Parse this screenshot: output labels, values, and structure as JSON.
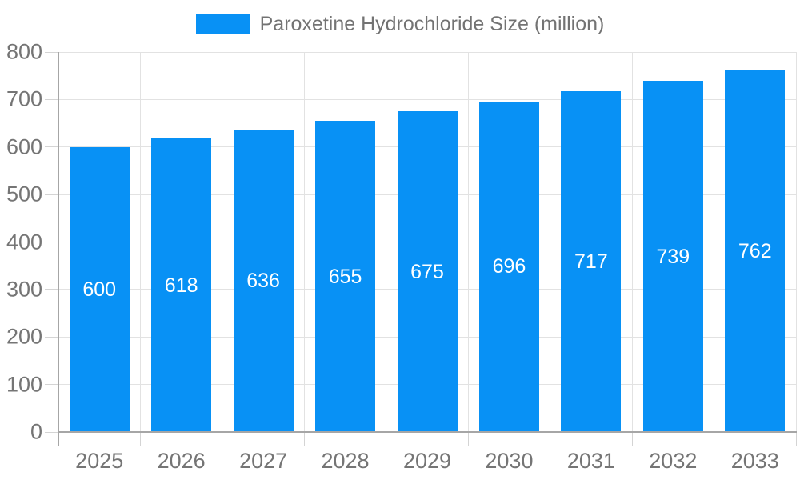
{
  "legend": {
    "label": "Paroxetine Hydrochloride Size (million)"
  },
  "chart_data": {
    "type": "bar",
    "title": "Paroxetine Hydrochloride Size (million)",
    "categories": [
      "2025",
      "2026",
      "2027",
      "2028",
      "2029",
      "2030",
      "2031",
      "2032",
      "2033"
    ],
    "values": [
      600,
      618,
      636,
      655,
      675,
      696,
      717,
      739,
      762
    ],
    "series_name": "Paroxetine Hydrochloride Size (million)",
    "xlabel": "",
    "ylabel": "",
    "ylim": [
      0,
      800
    ],
    "yticks": [
      0,
      100,
      200,
      300,
      400,
      500,
      600,
      700,
      800
    ],
    "grid": true,
    "legend_position": "top",
    "colors": {
      "bar": "#0891F5",
      "bar_label": "#FFFFFF",
      "axis_text": "#757575",
      "legend_text": "#737373",
      "gridline": "#E2E2E2",
      "axis_line": "#A6A6A6",
      "tick": "#D4D4D4",
      "background": "#FFFFFF"
    }
  }
}
